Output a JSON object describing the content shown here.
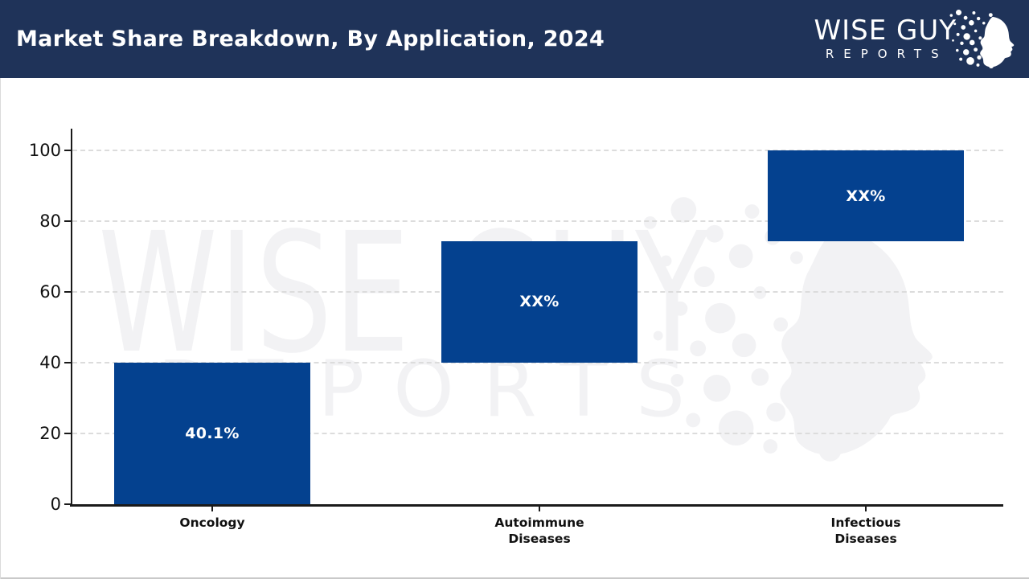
{
  "header": {
    "title": "Market Share Breakdown, By Application, 2024",
    "logo": {
      "name": "WISE GUY",
      "subtitle": "REPORTS"
    }
  },
  "watermark": {
    "name": "WISE GUY",
    "subtitle": "REPORTS"
  },
  "colors": {
    "header_bg": "#1F3359",
    "bar": "#04418F",
    "bar_label_text": "#FFFFFF",
    "watermark": "#F2F2F4"
  },
  "chart_data": {
    "type": "bar",
    "subtype": "floating_segment_bars",
    "title": "Market Share Breakdown, By Application, 2024",
    "categories": [
      "Oncology",
      "Autoimmune Diseases",
      "Infectious Diseases"
    ],
    "series": [
      {
        "name": "Market share (%)",
        "segments": [
          {
            "category": "Oncology",
            "from": 0,
            "to": 40.1,
            "label": "40.1%"
          },
          {
            "category": "Autoimmune Diseases",
            "from": 40.1,
            "to": 74.3,
            "label": "XX%"
          },
          {
            "category": "Infectious Diseases",
            "from": 74.3,
            "to": 100,
            "label": "XX%"
          }
        ]
      }
    ],
    "xlabel": "",
    "ylabel": "",
    "y_ticks": [
      0,
      20,
      40,
      60,
      80,
      100
    ],
    "ylim": [
      0,
      106
    ],
    "grid": "horizontal_dashed",
    "legend": "none"
  }
}
